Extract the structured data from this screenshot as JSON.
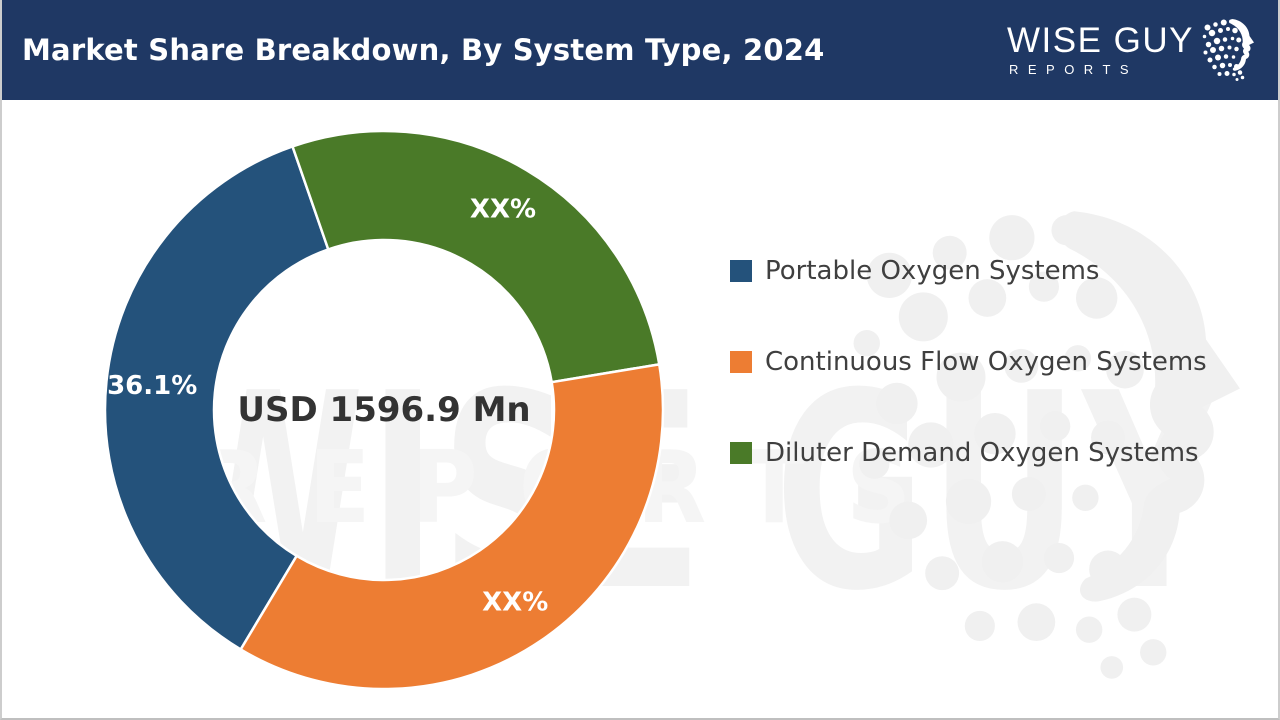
{
  "header": {
    "title": "Market Share Breakdown, By System Type, 2024",
    "bg_color": "#1f3864",
    "logo": {
      "wordmark": "WISE GUY",
      "subtext": "REPORTS"
    }
  },
  "watermark": {
    "line1": "WISE GUY",
    "line2": "REPORTS"
  },
  "chart_data": {
    "type": "pie",
    "subtype": "donut",
    "title": "Market Share Breakdown, By System Type, 2024",
    "center_label": "USD 1596.9 Mn",
    "start_angle_deg": 210.9,
    "legend_position": "right",
    "slices": [
      {
        "name": "Portable Oxygen Systems",
        "label": "36.1%",
        "value_pct": 36.1,
        "color": "#24527b"
      },
      {
        "name": "Diluter Demand Oxygen Systems",
        "label": "XX%",
        "value_pct": 27.7,
        "color": "#4a7a28"
      },
      {
        "name": "Continuous Flow Oxygen Systems",
        "label": "XX%",
        "value_pct": 36.2,
        "color": "#ed7d33"
      }
    ],
    "legend": [
      {
        "label": "Portable Oxygen Systems",
        "color": "#24527b"
      },
      {
        "label": "Continuous Flow Oxygen Systems",
        "color": "#ed7d33"
      },
      {
        "label": "Diluter Demand Oxygen Systems",
        "color": "#4a7a28"
      }
    ]
  },
  "colors": {
    "header_bg": "#1f3864",
    "page_border": "#cdcdcd",
    "legend_text": "#3f3f3f",
    "center_text": "#333333",
    "watermark": "#f2f2f2",
    "slice_label": "#ffffff"
  }
}
